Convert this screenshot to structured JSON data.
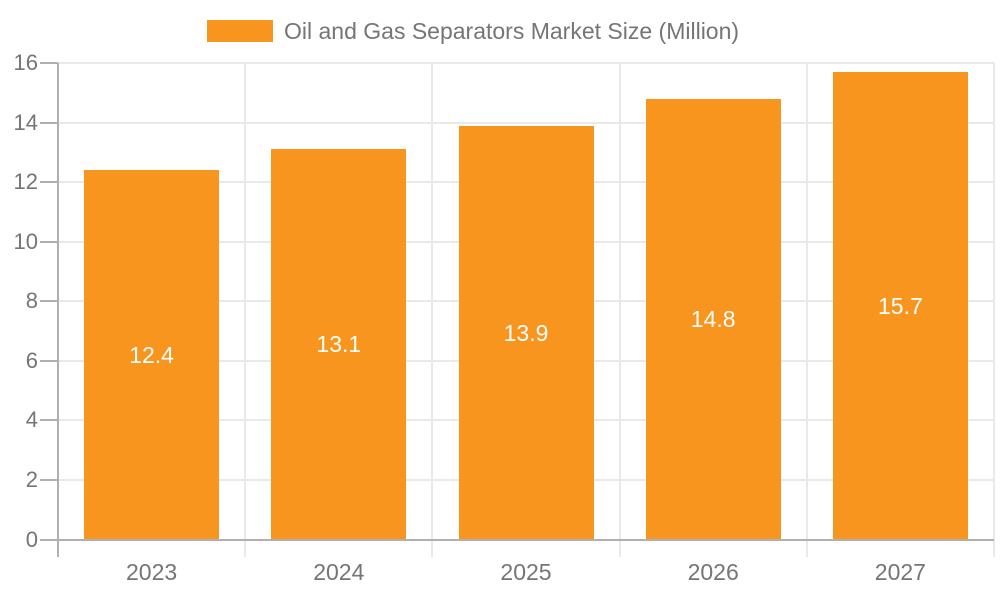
{
  "chart_data": {
    "type": "bar",
    "title": "Oil and Gas Separators Market Size (Million)",
    "categories": [
      "2023",
      "2024",
      "2025",
      "2026",
      "2027"
    ],
    "series": [
      {
        "name": "Oil and Gas Separators Market Size (Million)",
        "values": [
          12.4,
          13.1,
          13.9,
          14.8,
          15.7
        ]
      }
    ],
    "value_labels": [
      "12.4",
      "13.1",
      "13.9",
      "14.8",
      "15.7"
    ],
    "ytick_labels": [
      "0",
      "2",
      "4",
      "6",
      "8",
      "10",
      "12",
      "14",
      "16"
    ],
    "ylim": [
      0,
      16
    ],
    "ytick_step": 2,
    "xlabel": "",
    "ylabel": "",
    "grid": true,
    "legend_position": "top",
    "colors": {
      "bar": "#F8951E",
      "value_label": "#FFFFFF",
      "axis_text": "#757575",
      "gridline": "#E9E9E9",
      "axis_line": "#B0B0B0",
      "background": "#FFFFFF"
    }
  }
}
